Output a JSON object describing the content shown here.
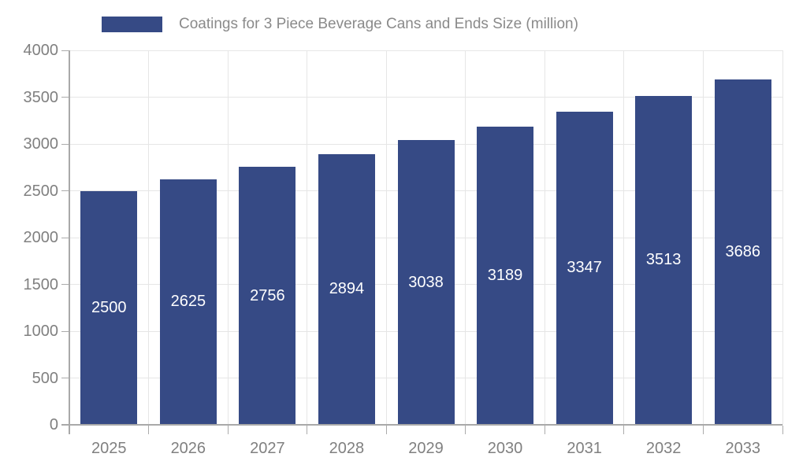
{
  "legend": {
    "label": "Coatings for 3 Piece Beverage Cans and Ends Size (million)"
  },
  "chart_data": {
    "type": "bar",
    "title": "Coatings for 3 Piece Beverage Cans and Ends Size (million)",
    "series_name": "Coatings for 3 Piece Beverage Cans and Ends Size (million)",
    "categories": [
      "2025",
      "2026",
      "2027",
      "2028",
      "2029",
      "2030",
      "2031",
      "2032",
      "2033"
    ],
    "values": [
      2500,
      2625,
      2756,
      2894,
      3038,
      3189,
      3347,
      3513,
      3686
    ],
    "xlabel": "",
    "ylabel": "",
    "ylim": [
      0,
      4000
    ],
    "yticks": [
      0,
      500,
      1000,
      1500,
      2000,
      2500,
      3000,
      3500,
      4000
    ],
    "grid": true,
    "legend_position": "top",
    "bar_label_position": "center",
    "colors": {
      "bar": "#364a85",
      "bar_label": "#ffffff",
      "axis_text": "#808080",
      "legend_text": "#8a8a8a",
      "grid_line": "#e6e6e6",
      "axis_line": "#a9a9a9",
      "tick_mark": "#ababab",
      "background": "#ffffff"
    }
  }
}
